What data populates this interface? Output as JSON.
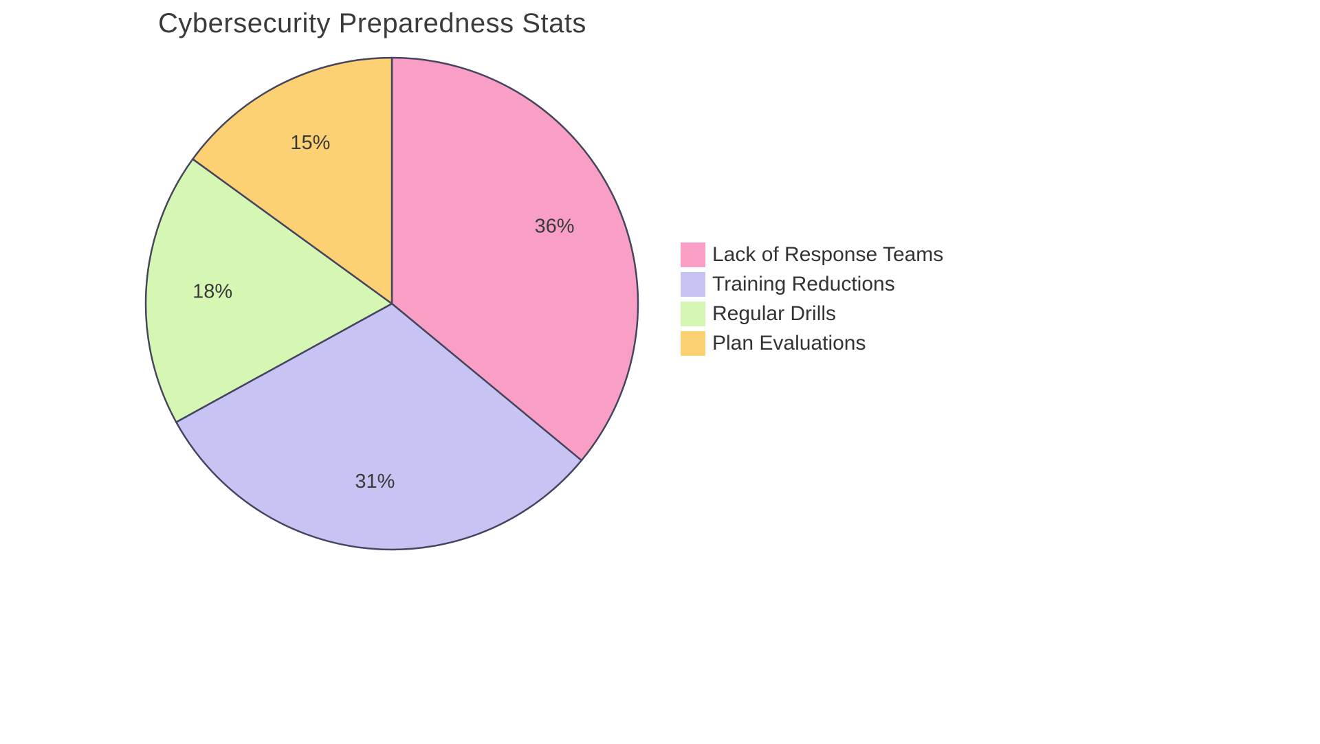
{
  "chart_data": {
    "type": "pie",
    "title": "Cybersecurity Preparedness Stats",
    "labels": [
      "Lack of Response Teams",
      "Training Reductions",
      "Regular Drills",
      "Plan Evaluations"
    ],
    "values": [
      36,
      31,
      18,
      15
    ],
    "slice_labels": [
      "36%",
      "31%",
      "18%",
      "15%"
    ],
    "unit": "%",
    "colors": [
      "#F99FC5",
      "#C7C4F4",
      "#D6F6B4",
      "#FBD173"
    ],
    "outline_color": "#45455F",
    "start_angle_deg": -90,
    "direction": "clockwise",
    "legend_position": "right",
    "grid": false
  },
  "geometry_note": "pie centered left of legend, labels inside slices"
}
